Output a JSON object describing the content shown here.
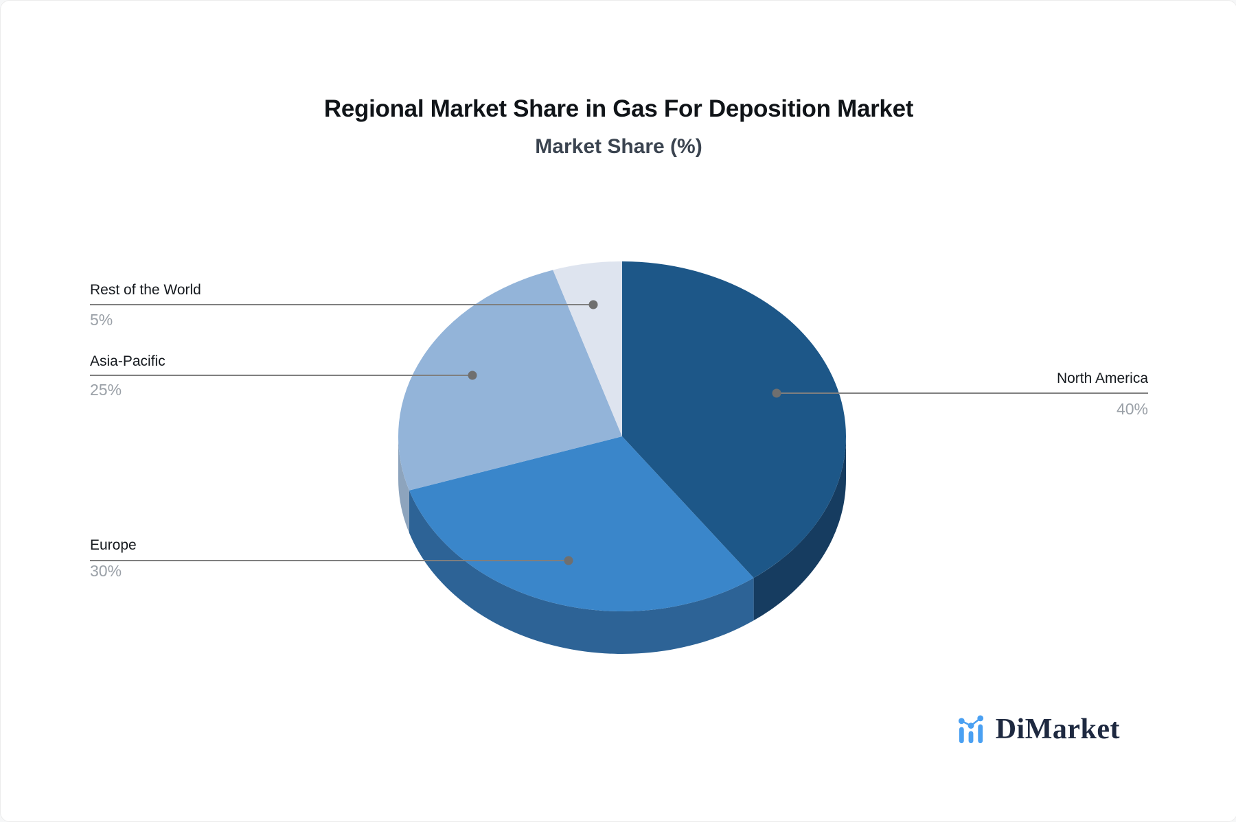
{
  "header": {
    "title": "Regional Market Share in Gas For Deposition Market",
    "subtitle": "Market Share (%)"
  },
  "chart_data": {
    "type": "pie",
    "title": "Regional Market Share in Gas For Deposition Market",
    "subtitle": "Market Share (%)",
    "unit": "%",
    "effect": "3d",
    "direction": "clockwise",
    "start_position": "12-oclock",
    "label_position": "callout-leader-lines",
    "legend_position": "none",
    "labels": [
      "North America",
      "Europe",
      "Asia-Pacific",
      "Rest of the World"
    ],
    "values": [
      40,
      30,
      25,
      5
    ],
    "colors": [
      "#1d5788",
      "#3a86ca",
      "#93b4d9",
      "#dee4ef"
    ],
    "side_colors": [
      "#163c60",
      "#2d6396",
      "#8da4bd",
      "#c9d2e0"
    ]
  },
  "callouts": [
    {
      "label": "Rest of the World",
      "value": "5%",
      "side": "left"
    },
    {
      "label": "Asia-Pacific",
      "value": "25%",
      "side": "left"
    },
    {
      "label": "Europe",
      "value": "30%",
      "side": "left"
    },
    {
      "label": "North America",
      "value": "40%",
      "side": "right"
    }
  ],
  "logo": {
    "text": "DiMarket",
    "icon": "bar-chart-icon",
    "text_color": "#1e2940",
    "icon_color": "#4aa0f2"
  },
  "style_colors": {
    "background": "#ffffff",
    "title": "#101418",
    "subtitle": "#3b4450",
    "callout_label": "#15191e",
    "callout_value": "#9aa0a7",
    "leader_line": "#7f7f7f",
    "leader_dot": "#6f6f6f"
  }
}
